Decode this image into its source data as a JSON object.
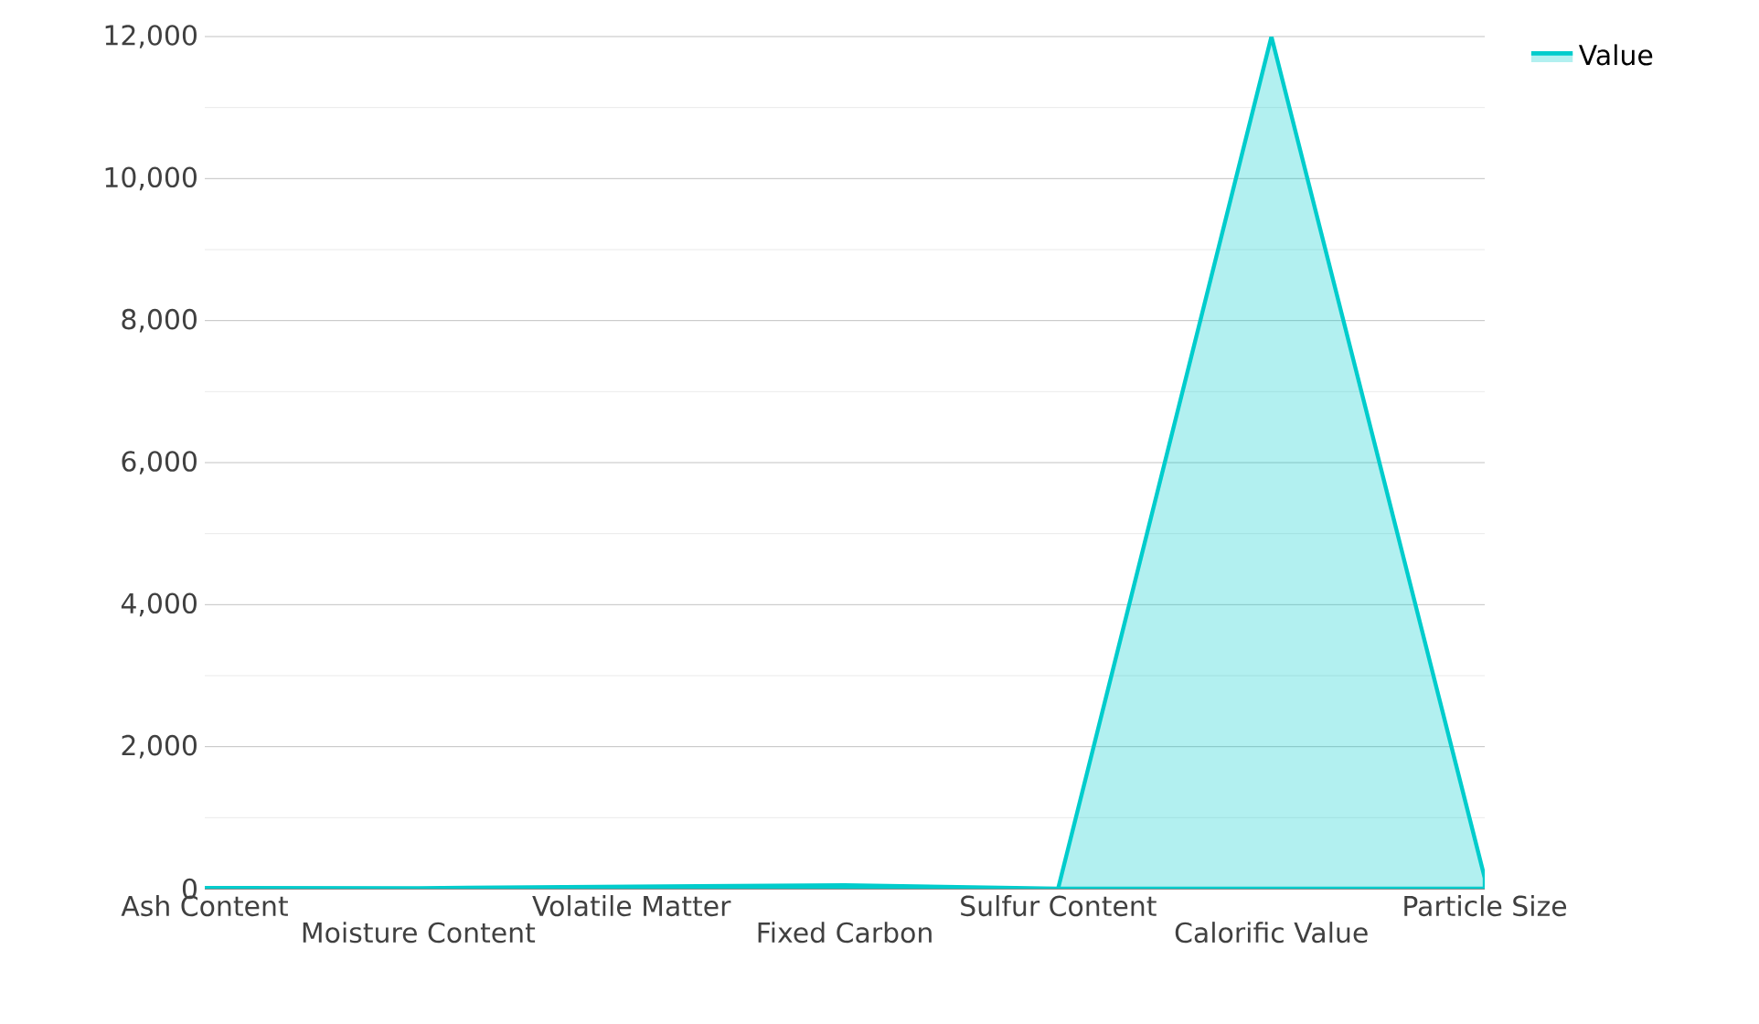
{
  "chart_data": {
    "type": "area",
    "categories": [
      "Ash Content",
      "Moisture Content",
      "Volatile Matter",
      "Fixed Carbon",
      "Sulfur Content",
      "Calorific Value",
      "Particle Size"
    ],
    "series": [
      {
        "name": "Value",
        "color": "#00cccc",
        "values": [
          10,
          8,
          30,
          50,
          1,
          12000,
          150
        ]
      }
    ],
    "ylim": [
      0,
      12000
    ],
    "yticks": [
      {
        "value": 0,
        "label": "0"
      },
      {
        "value": 2000,
        "label": "2,000"
      },
      {
        "value": 4000,
        "label": "4,000"
      },
      {
        "value": 6000,
        "label": "6,000"
      },
      {
        "value": 8000,
        "label": "8,000"
      },
      {
        "value": 10000,
        "label": "10,000"
      },
      {
        "value": 12000,
        "label": "12,000"
      }
    ],
    "grid": "y",
    "legend": "top right"
  }
}
